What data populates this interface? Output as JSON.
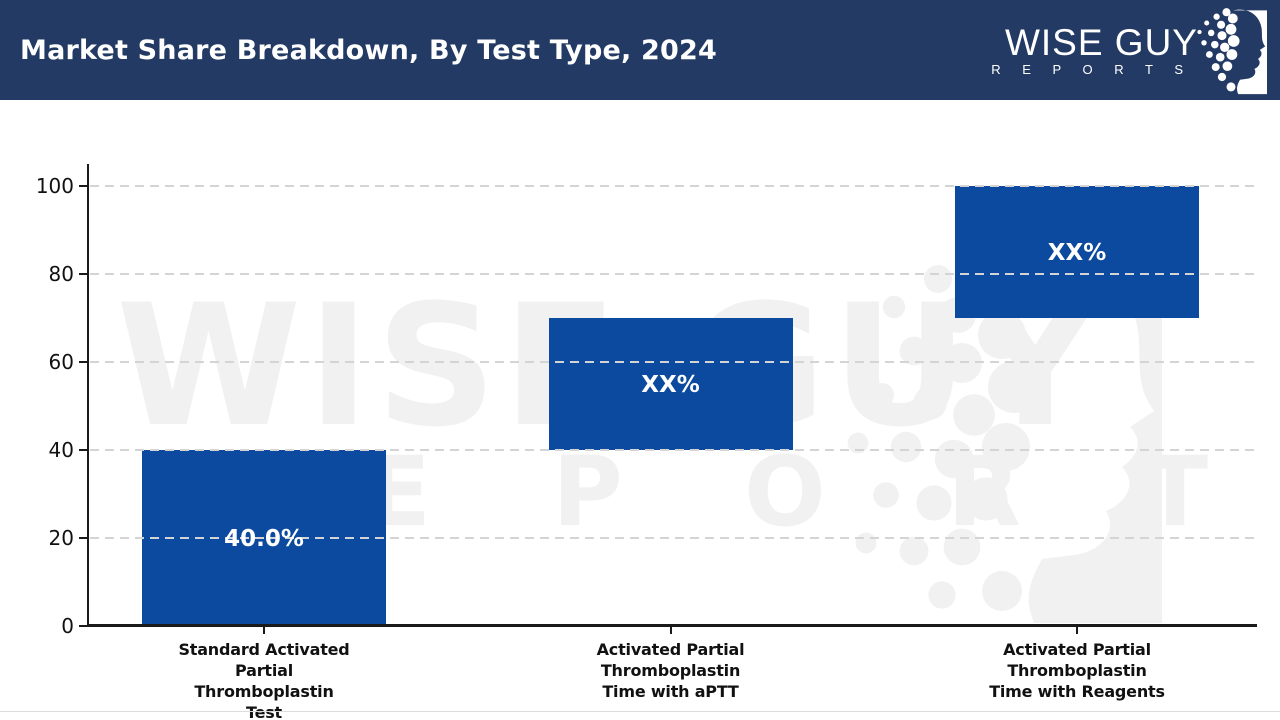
{
  "header": {
    "title": "Market Share Breakdown, By Test Type, 2024",
    "logo": {
      "name_top": "WISE GUY",
      "name_bottom": "R E P O R T S"
    }
  },
  "watermark": {
    "line1": "WISE GUY",
    "line2": "R E P O R T S"
  },
  "chart_data": {
    "type": "bar",
    "subtype": "waterfall",
    "title": "Market Share Breakdown, By Test Type, 2024",
    "categories": [
      {
        "label": "Standard Activated Partial Thromboplastin Test",
        "label_lines": [
          "Standard Activated",
          "Partial",
          "Thromboplastin",
          "Test"
        ],
        "start": 0,
        "end": 40,
        "value_label": "40.0%"
      },
      {
        "label": "Activated Partial Thromboplastin Time with aPTT",
        "label_lines": [
          "Activated Partial",
          "Thromboplastin",
          "Time with aPTT"
        ],
        "start": 40,
        "end": 70,
        "value_label": "XX%"
      },
      {
        "label": "Activated Partial Thromboplastin Time with Reagents",
        "label_lines": [
          "Activated Partial",
          "Thromboplastin",
          "Time with Reagents"
        ],
        "start": 70,
        "end": 100,
        "value_label": "XX%"
      }
    ],
    "ylim": [
      0,
      100
    ],
    "yticks": [
      0,
      20,
      40,
      60,
      80,
      100
    ],
    "xlabel": "",
    "ylabel": "",
    "legend": null,
    "grid": "horizontal-dashed",
    "colors": {
      "bar": "#0b4a9e",
      "header_bg": "#233a64",
      "grid": "#d4d4d4",
      "axis": "#1a1a1a",
      "watermark": "#f1f1f2",
      "value_label": "#ffffff",
      "tick_label": "#111111"
    }
  }
}
